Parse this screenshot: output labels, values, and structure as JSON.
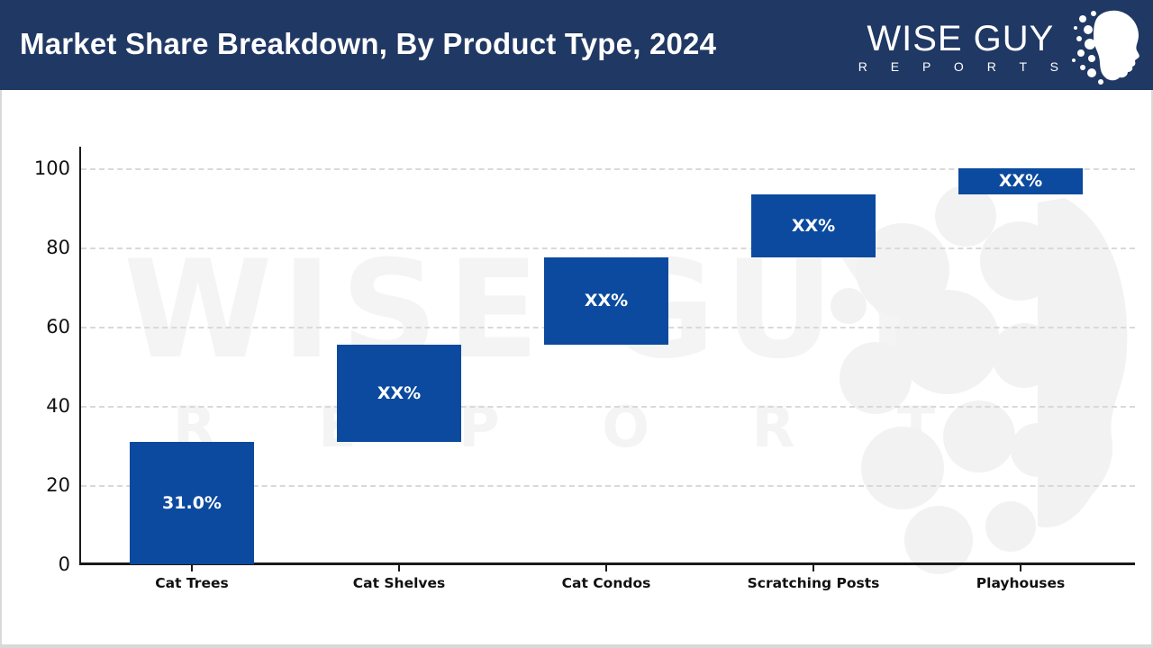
{
  "header": {
    "title": "Market Share Breakdown, By Product Type, 2024",
    "bg_color": "#203864",
    "logo": {
      "line1": "WISE GUY",
      "line2": "R E P O R T S"
    }
  },
  "watermark": {
    "line1": "WISE GUY",
    "line2": "R E P O R T S"
  },
  "chart_data": {
    "type": "bar",
    "subtype": "waterfall",
    "title": "Market Share Breakdown, By Product Type, 2024",
    "categories": [
      "Cat Trees",
      "Cat Shelves",
      "Cat Condos",
      "Scratching Posts",
      "Playhouses"
    ],
    "segments": [
      {
        "category": "Cat Trees",
        "start": 0.0,
        "end": 31.0,
        "label": "31.0%"
      },
      {
        "category": "Cat Shelves",
        "start": 31.0,
        "end": 55.5,
        "label": "XX%"
      },
      {
        "category": "Cat Condos",
        "start": 55.5,
        "end": 77.5,
        "label": "XX%"
      },
      {
        "category": "Scratching Posts",
        "start": 77.5,
        "end": 93.5,
        "label": "XX%"
      },
      {
        "category": "Playhouses",
        "start": 93.5,
        "end": 100.0,
        "label": "XX%"
      }
    ],
    "ylim": [
      0,
      100
    ],
    "yticks": [
      0,
      20,
      40,
      60,
      80,
      100
    ],
    "xlabel": "",
    "ylabel": "",
    "grid": "horizontal-dashed",
    "legend": "none",
    "bar_color": "#0b4a9e",
    "bar_label_color": "#ffffff"
  }
}
